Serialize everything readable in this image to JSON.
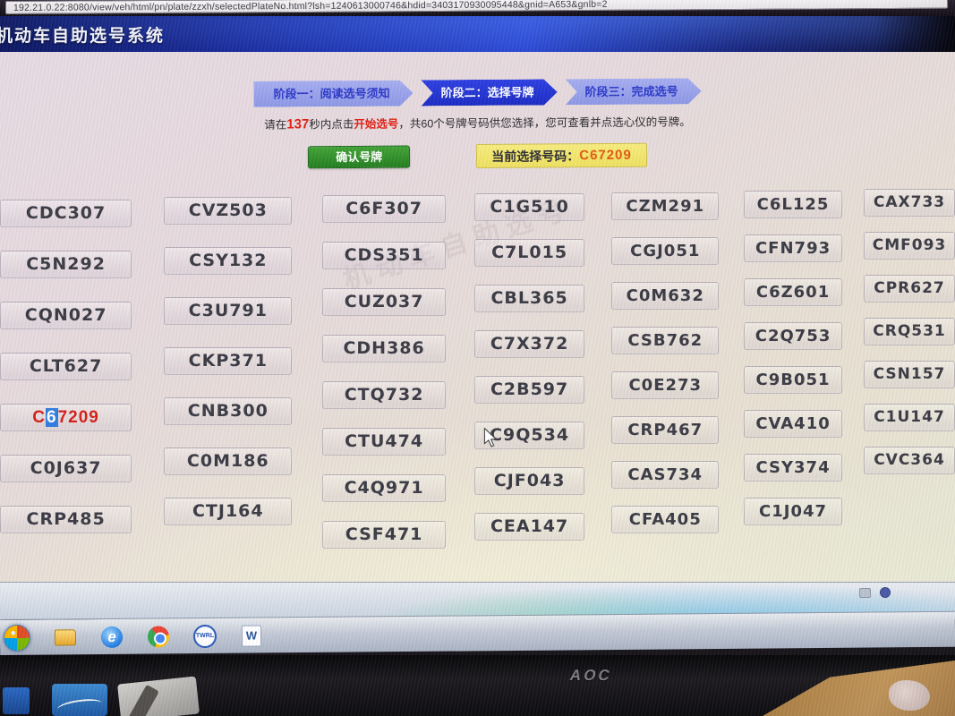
{
  "browser": {
    "url": "192.21.0.22:8080/view/veh/html/pn/plate/zzxh/selectedPlateNo.html?lsh=1240613000746&hdid=3403170930095448&gnid=A653&gnlb=2"
  },
  "header": {
    "title": "机动车自助选号系统"
  },
  "stages": {
    "tab1": "阶段一：阅读选号须知",
    "tab2": "阶段二：选择号牌",
    "tab3": "阶段三：完成选号"
  },
  "notice": {
    "prefix": "请在",
    "seconds": "137",
    "mid": "秒内点击",
    "action": "开始选号",
    "suffix": "，共60个号牌号码供您选择，您可查看并点选心仪的号牌。"
  },
  "actions": {
    "confirm": "确认号牌",
    "current_label": "当前选择号码：",
    "current_value": "C67209"
  },
  "plates": {
    "selected": "C67209",
    "selected_parts": {
      "pre": "C",
      "highlight": "6",
      "post": "7209"
    },
    "columns": [
      [
        "CDC307",
        "C5N292",
        "CQN027",
        "CLT627",
        "C67209",
        "C0J637",
        "CRP485"
      ],
      [
        "CVZ503",
        "CSY132",
        "C3U791",
        "CKP371",
        "CNB300",
        "C0M186",
        "CTJ164"
      ],
      [
        "C6F307",
        "CDS351",
        "CUZ037",
        "CDH386",
        "CTQ732",
        "CTU474",
        "C4Q971",
        "CSF471"
      ],
      [
        "C1G510",
        "C7L015",
        "CBL365",
        "C7X372",
        "C2B597",
        "C9Q534",
        "CJF043",
        "CEA147"
      ],
      [
        "CZM291",
        "CGJ051",
        "C0M632",
        "CSB762",
        "C0E273",
        "CRP467",
        "CAS734",
        "CFA405"
      ],
      [
        "C6L125",
        "CFN793",
        "C6Z601",
        "C2Q753",
        "C9B051",
        "CVA410",
        "CSY374",
        "C1J047"
      ],
      [
        "CAX733",
        "CMF093",
        "CPR627",
        "CRQ531",
        "CSN157",
        "C1U147",
        "CVC364"
      ]
    ]
  },
  "taskbar": {
    "twrl_label": "TWRL",
    "word_label": "W"
  },
  "monitor": {
    "brand": "AOC"
  },
  "colors": {
    "accent_blue": "#1b2bc4",
    "confirm_green": "#237f1f",
    "selection_yellow": "#efe160",
    "selected_red": "#d42018",
    "highlight_blue": "#2f7de0"
  }
}
